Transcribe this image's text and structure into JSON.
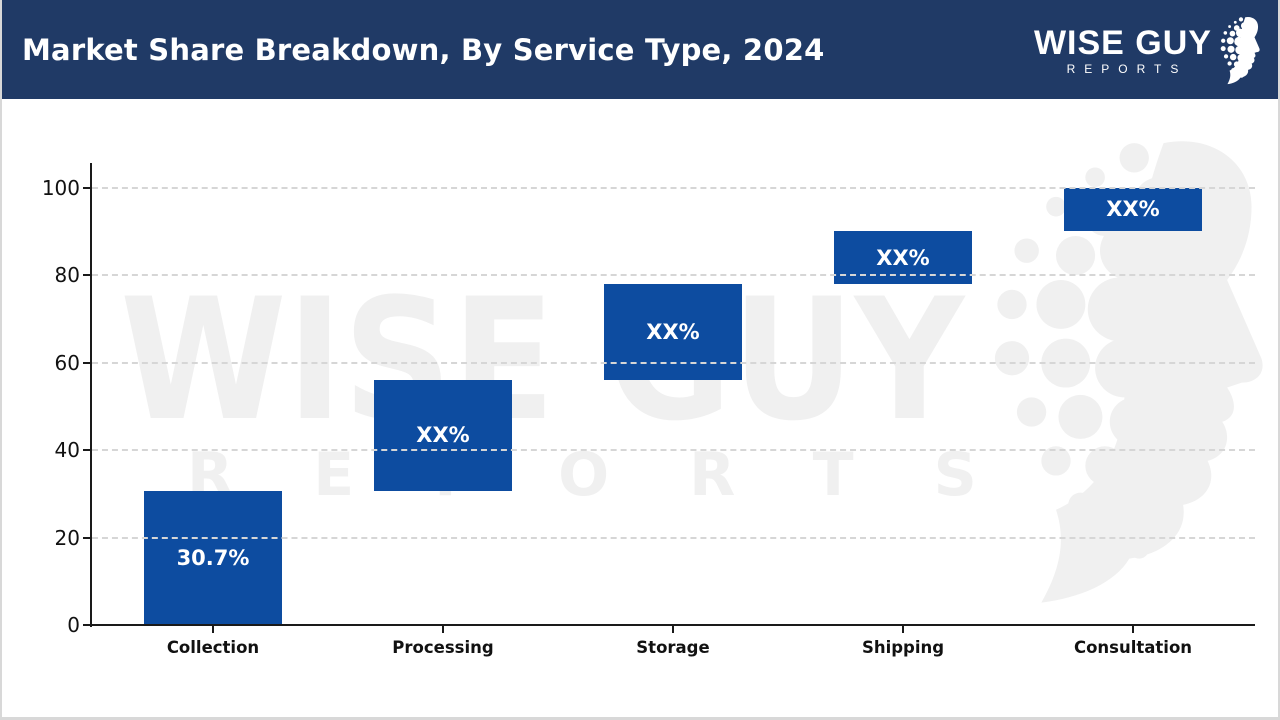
{
  "header": {
    "title": "Market Share Breakdown, By Service Type, 2024",
    "logo": {
      "brand": "WISE GUY",
      "sub": "REPORTS"
    }
  },
  "watermark": {
    "brand": "WISE GUY",
    "sub": "REPORTS"
  },
  "colors": {
    "header_bg": "#203a66",
    "bar": "#0d4ca0",
    "bar_label": "#ffffff",
    "grid": "#d6d6d6",
    "axis": "#1a1a1a",
    "tick_label": "#111111",
    "watermark": "#f0f0f0",
    "page_border": "#d8d8d8"
  },
  "chart_data": {
    "type": "bar",
    "variant": "waterfall",
    "title": "Market Share Breakdown, By Service Type, 2024",
    "categories": [
      "Collection",
      "Processing",
      "Storage",
      "Shipping",
      "Consultation"
    ],
    "bars": [
      {
        "category": "Collection",
        "start": 0,
        "end": 30.7,
        "label": "30.7%"
      },
      {
        "category": "Processing",
        "start": 30.7,
        "end": 56,
        "label": "XX%"
      },
      {
        "category": "Storage",
        "start": 56,
        "end": 78,
        "label": "XX%"
      },
      {
        "category": "Shipping",
        "start": 78,
        "end": 90,
        "label": "XX%"
      },
      {
        "category": "Consultation",
        "start": 90,
        "end": 100,
        "label": "XX%"
      }
    ],
    "y_ticks": [
      0,
      20,
      40,
      60,
      80,
      100
    ],
    "ylim": [
      0,
      105.7
    ],
    "xlabel": "",
    "ylabel": "",
    "units": "percent",
    "grid": "horizontal-dashed",
    "legend": "none"
  }
}
